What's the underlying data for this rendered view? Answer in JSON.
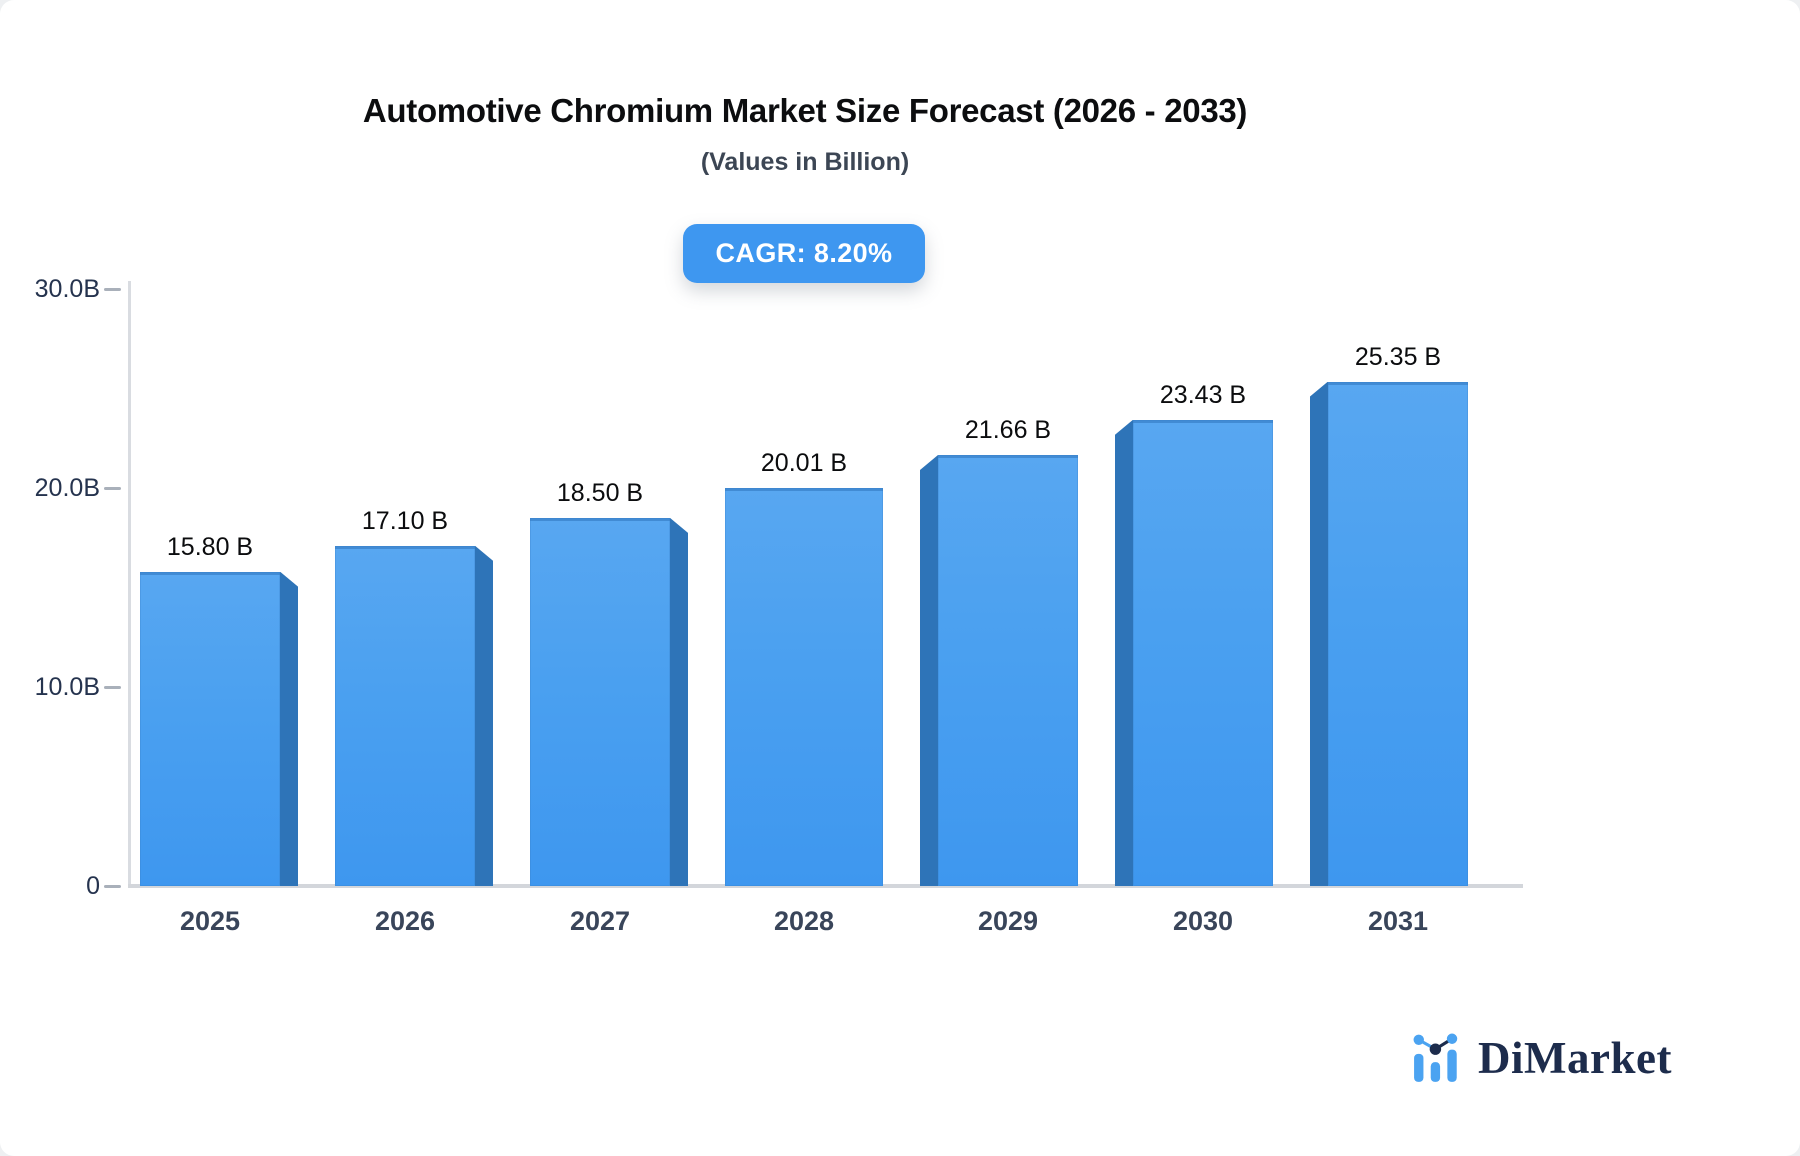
{
  "chart_data": {
    "type": "bar",
    "title": "Automotive Chromium Market Size Forecast (2026 - 2033)",
    "subtitle": "(Values in Billion)",
    "annotation": "CAGR: 8.20%",
    "categories": [
      "2025",
      "2026",
      "2027",
      "2028",
      "2029",
      "2030",
      "2031"
    ],
    "values": [
      15.8,
      17.1,
      18.5,
      20.01,
      21.66,
      23.43,
      25.35
    ],
    "value_labels": [
      "15.80 B",
      "17.10 B",
      "18.50 B",
      "20.01 B",
      "21.66 B",
      "23.43 B",
      "25.35 B"
    ],
    "unit": "Billion",
    "xlabel": "",
    "ylabel": "",
    "ylim": [
      0,
      30
    ],
    "yticks": [
      {
        "label": "30.0B",
        "value": 30
      },
      {
        "label": "20.0B",
        "value": 20
      },
      {
        "label": "10.0B",
        "value": 10
      },
      {
        "label": "0",
        "value": 0
      }
    ],
    "grid": false,
    "legend": false,
    "bar_style": "3d-perspective",
    "colors": {
      "bar_face_top": "#58a7f1",
      "bar_face_bottom": "#3e97ef",
      "bar_side": "#2e74b8",
      "badge_background": "#3e97f0",
      "axis_line": "#d9dce1",
      "tick_dash": "#a9b0ba",
      "value_label": "#0b0c0e",
      "axis_label": "#25334e",
      "category_label": "#39455a"
    }
  },
  "brand": {
    "name": "DiMarket",
    "icon": "bar-line-chart-logo-icon",
    "color": "#1d2c4c",
    "accent": "#4ba3f1"
  }
}
